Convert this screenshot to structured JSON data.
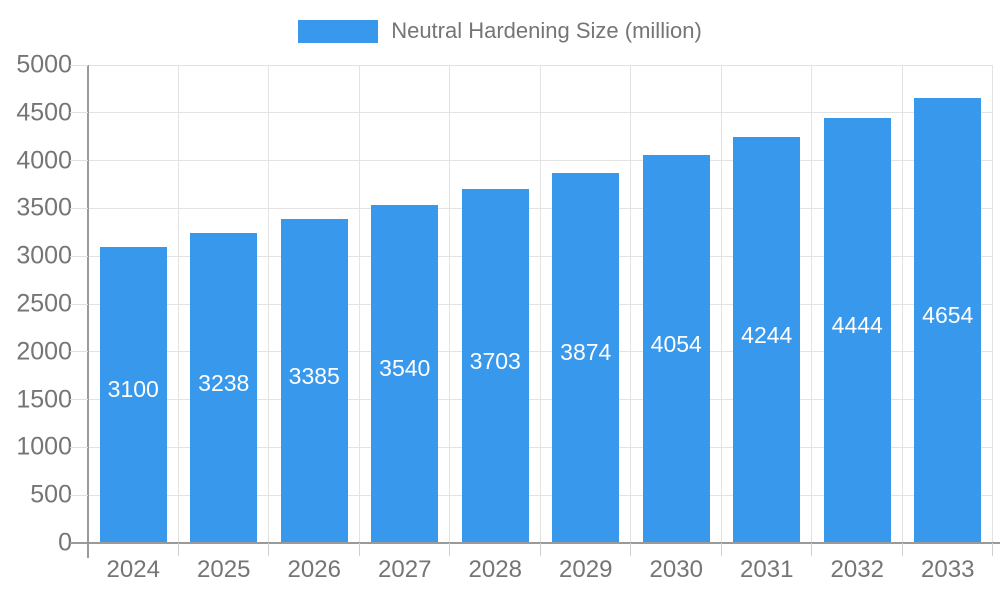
{
  "legend": {
    "label": "Neutral Hardening Size (million)"
  },
  "chart_data": {
    "type": "bar",
    "title": "Neutral Hardening Size (million)",
    "categories": [
      "2024",
      "2025",
      "2026",
      "2027",
      "2028",
      "2029",
      "2030",
      "2031",
      "2032",
      "2033"
    ],
    "series": [
      {
        "name": "Neutral Hardening Size (million)",
        "values": [
          3100,
          3238,
          3385,
          3540,
          3703,
          3874,
          4054,
          4244,
          4444,
          4654
        ]
      }
    ],
    "xlabel": "",
    "ylabel": "",
    "ylim": [
      0,
      5000
    ],
    "ytick_step": 500,
    "ytick_labels": [
      "0",
      "500",
      "1000",
      "1500",
      "2000",
      "2500",
      "3000",
      "3500",
      "4000",
      "4500",
      "5000"
    ],
    "grid": true,
    "legend_position": "top-center",
    "value_labels": "inside-center",
    "colors": {
      "bar": "#3898EC",
      "value_label": "#FFFFFF",
      "axis_text": "#757575",
      "grid_line": "#E3E3E3",
      "axis_line": "#9A9A9A"
    }
  }
}
